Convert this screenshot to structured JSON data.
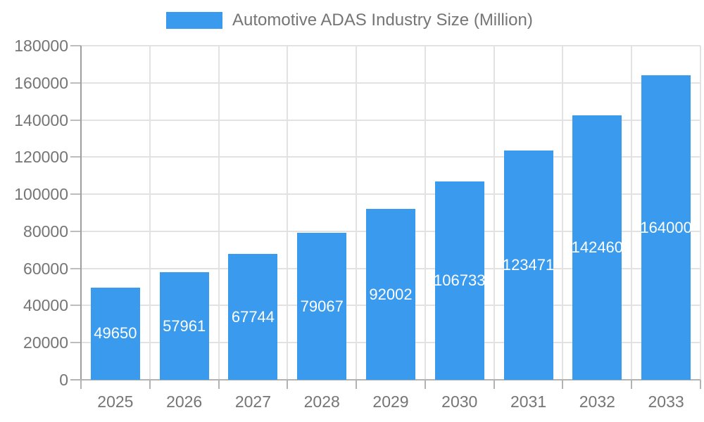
{
  "chart_data": {
    "type": "bar",
    "title": "Automotive ADAS Industry Size (Million)",
    "legend_position": "top",
    "categories": [
      "2025",
      "2026",
      "2027",
      "2028",
      "2029",
      "2030",
      "2031",
      "2032",
      "2033"
    ],
    "values": [
      49650,
      57961,
      67744,
      79067,
      92002,
      106733,
      123471,
      142460,
      164000
    ],
    "value_labels": [
      "49650",
      "57961",
      "67744",
      "79067",
      "92002",
      "106733",
      "123471",
      "142460",
      "164000"
    ],
    "xlabel": "",
    "ylabel": "",
    "ylim": [
      0,
      180000
    ],
    "y_tick_step": 20000,
    "y_tick_labels": [
      "0",
      "20000",
      "40000",
      "60000",
      "80000",
      "100000",
      "120000",
      "140000",
      "160000",
      "180000"
    ],
    "grid": true
  },
  "colors": {
    "bar": "#399AEE",
    "grid": "#E2E2E2",
    "y_axis_line": "#9E9E9E",
    "x_axis_line": "#B3B3B3",
    "tick": "#BDBDBD",
    "text": "#757575",
    "value_text": "#ffffff",
    "background": "#ffffff"
  }
}
